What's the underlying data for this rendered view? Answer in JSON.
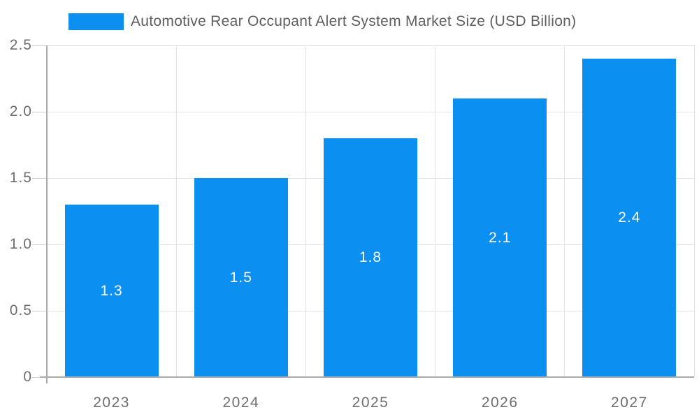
{
  "legend": {
    "label": "Automotive Rear Occupant Alert System Market Size (USD Billion)"
  },
  "chart_data": {
    "type": "bar",
    "title": "Automotive Rear Occupant Alert System Market Size (USD Billion)",
    "categories": [
      "2023",
      "2024",
      "2025",
      "2026",
      "2027"
    ],
    "values": [
      1.3,
      1.5,
      1.8,
      2.1,
      2.4
    ],
    "bar_labels": [
      "1.3",
      "1.5",
      "1.8",
      "2.1",
      "2.4"
    ],
    "xlabel": "",
    "ylabel": "",
    "ylim": [
      0,
      2.5
    ],
    "ytick_interval": 0.5,
    "ytick_labels": [
      "0",
      "0.5",
      "1.0",
      "1.5",
      "2.0",
      "2.5"
    ],
    "grid": true,
    "legend_position": "top-left",
    "colors": {
      "bar": "#0b90f2",
      "bar_label_text": "#ffffff",
      "axis_line": "#ababab",
      "tick_mark": "#cfcfcf",
      "gridline": "#e3e3e3",
      "tick_label_text": "#6e6e6e",
      "legend_text": "#5f5f5f",
      "background": "#ffffff"
    }
  }
}
